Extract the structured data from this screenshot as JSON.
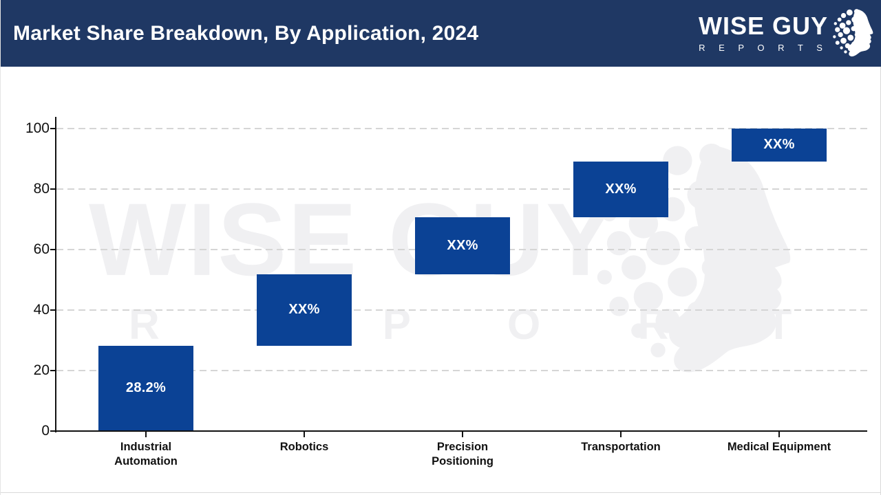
{
  "header": {
    "title": "Market Share Breakdown, By Application, 2024",
    "logo": {
      "wordmark": "WISE GUY",
      "subtext": "R E P O R T S"
    }
  },
  "watermark": {
    "wordmark": "WISE GUY",
    "subtext": "R E P O R T S"
  },
  "colors": {
    "header_bg": "#1f3864",
    "bar": "#0b4295",
    "bar_label": "#ffffff",
    "grid": "#d5d5d5",
    "axis": "#111111",
    "watermark": "#f0f0f2"
  },
  "chart_data": {
    "type": "bar",
    "variant": "waterfall",
    "title": "Market Share Breakdown, By Application, 2024",
    "categories": [
      "Industrial Automation",
      "Robotics",
      "Precision Positioning",
      "Transportation",
      "Medical Equipment"
    ],
    "tick_labels": [
      "Industrial\nAutomation",
      "Robotics",
      "Precision\nPositioning",
      "Transportation",
      "Medical Equipment"
    ],
    "segments": [
      {
        "category": "Industrial Automation",
        "start": 0,
        "end": 28.2,
        "label": "28.2%"
      },
      {
        "category": "Robotics",
        "start": 28.2,
        "end": 51.8,
        "label": "XX%"
      },
      {
        "category": "Precision Positioning",
        "start": 51.8,
        "end": 70.6,
        "label": "XX%"
      },
      {
        "category": "Transportation",
        "start": 70.6,
        "end": 89.2,
        "label": "XX%"
      },
      {
        "category": "Medical Equipment",
        "start": 89.2,
        "end": 100,
        "label": "XX%"
      }
    ],
    "xlabel": "",
    "ylabel": "",
    "ylim": [
      0,
      100
    ],
    "yticks": [
      0,
      20,
      40,
      60,
      80,
      100
    ],
    "grid": "dashed-horizontal",
    "legend": "none"
  }
}
